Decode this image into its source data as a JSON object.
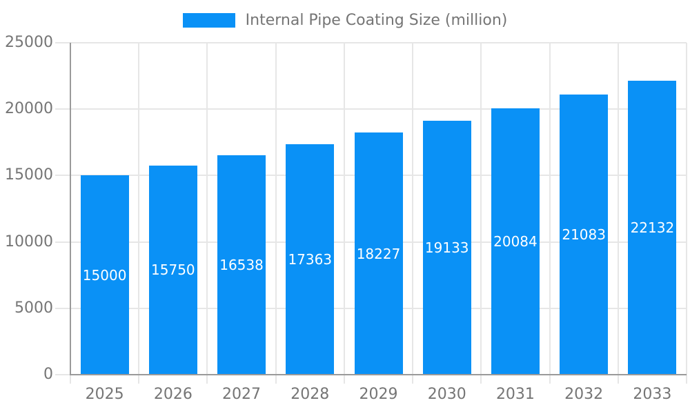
{
  "legend": {
    "label": "Internal Pipe Coating Size (million)"
  },
  "colors": {
    "bar": "#0a91f6",
    "axis": "#9a9a9a",
    "grid": "#e6e6e6",
    "text": "#757575",
    "bar_label": "#ffffff",
    "background": "#ffffff"
  },
  "chart_data": {
    "type": "bar",
    "title": "Internal Pipe Coating Size (million)",
    "categories": [
      "2025",
      "2026",
      "2027",
      "2028",
      "2029",
      "2030",
      "2031",
      "2032",
      "2033"
    ],
    "values": [
      15000,
      15750,
      16538,
      17363,
      18227,
      19133,
      20084,
      21083,
      22132
    ],
    "bar_labels": [
      "15000",
      "15750",
      "16538",
      "17363",
      "18227",
      "19133",
      "20084",
      "21083",
      "22132"
    ],
    "xlabel": "",
    "ylabel": "",
    "ylim": [
      0,
      25000
    ],
    "yticks": [
      0,
      5000,
      10000,
      15000,
      20000,
      25000
    ],
    "grid": true,
    "legend_position": "top",
    "bar_label_position": "inside-center",
    "bar_label_color": "#ffffff"
  }
}
